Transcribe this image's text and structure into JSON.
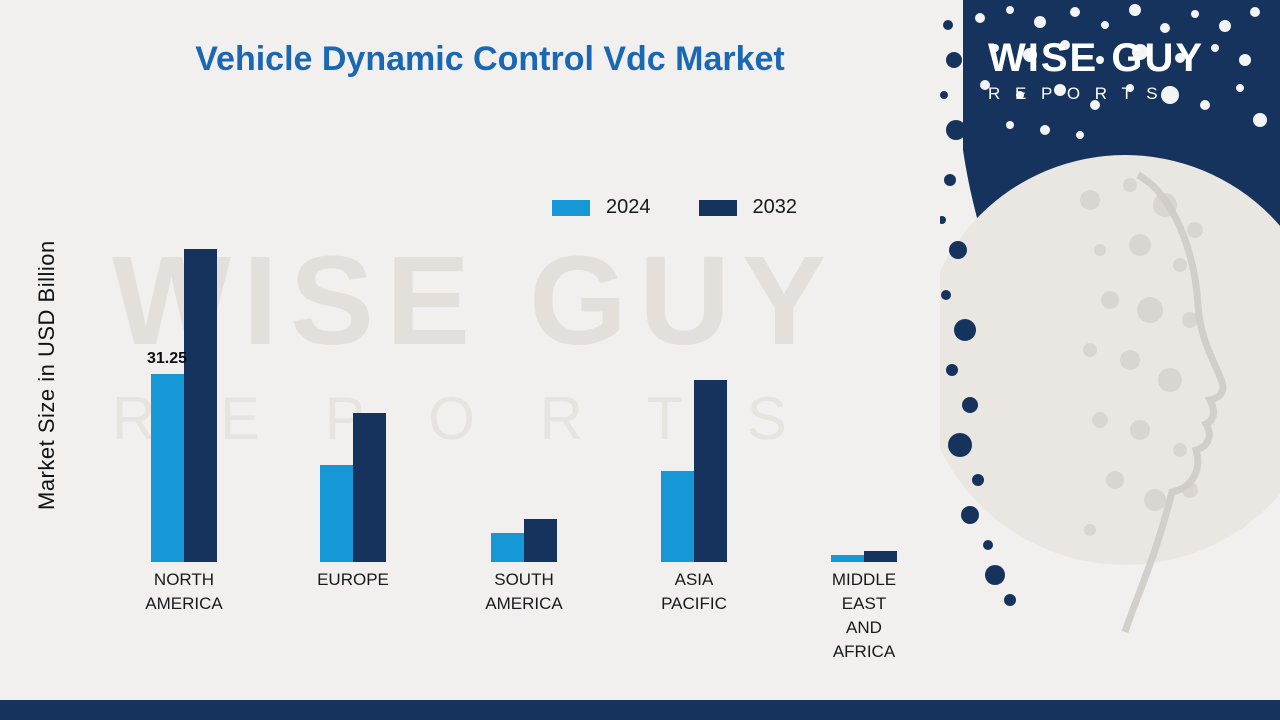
{
  "logo": {
    "brand": "WISE GUY",
    "reports": "R E P O R T S"
  },
  "watermark": {
    "line1": "WISE GUY",
    "line2": "R E P O R T S"
  },
  "colors": {
    "accent_blue": "#1a67b3",
    "navy": "#15335c",
    "light_blue": "#1798d6",
    "background": "#f2f0ee"
  },
  "chart_data": {
    "type": "bar",
    "title": "Vehicle Dynamic Control Vdc Market",
    "ylabel": "Market Size in USD Billion",
    "xlabel": "",
    "categories": [
      "NORTH AMERICA",
      "EUROPE",
      "SOUTH AMERICA",
      "ASIA PACIFIC",
      "MIDDLE EAST AND AFRICA"
    ],
    "label_lines": [
      [
        "NORTH",
        "AMERICA"
      ],
      [
        "EUROPE"
      ],
      [
        "SOUTH",
        "AMERICA"
      ],
      [
        "ASIA",
        "PACIFIC"
      ],
      [
        "MIDDLE",
        "EAST",
        "AND",
        "AFRICA"
      ]
    ],
    "series": [
      {
        "name": "2024",
        "color": "#1798d6",
        "values": [
          31.25,
          16.1,
          4.8,
          15.2,
          1.2
        ]
      },
      {
        "name": "2032",
        "color": "#15335c",
        "values": [
          52.1,
          24.8,
          7.1,
          30.4,
          1.9
        ]
      }
    ],
    "bar_labels": [
      {
        "series": 0,
        "category": 0,
        "text": "31.25"
      }
    ],
    "ylim": [
      0,
      55
    ],
    "grid": false,
    "legend_position": "top"
  }
}
